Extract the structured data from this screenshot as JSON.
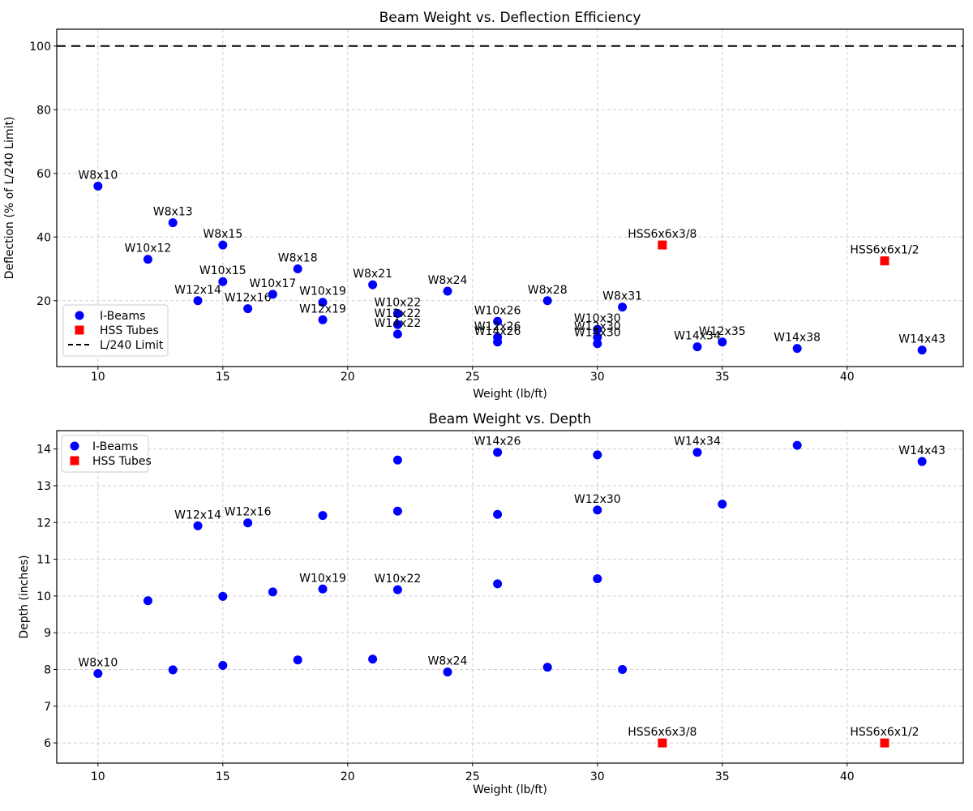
{
  "figure": {
    "background": "#ffffff"
  },
  "colors": {
    "i_beams": "#0000ff",
    "hss_tubes": "#ff0000",
    "limit_line": "#000000",
    "grid": "#cfcfcf"
  },
  "chart_data": [
    {
      "type": "scatter",
      "title": "Beam Weight vs. Deflection Efficiency",
      "xlabel": "Weight (lb/ft)",
      "ylabel": "Deflection (% of L/240 Limit)",
      "xlim": [
        8.35,
        44.65
      ],
      "ylim": [
        -0.7,
        105.3
      ],
      "xticks": [
        10,
        15,
        20,
        25,
        30,
        35,
        40
      ],
      "yticks": [
        20,
        40,
        60,
        80,
        100
      ],
      "grid": true,
      "legend_position": "lower left",
      "hline": {
        "y": 100,
        "label": "L/240 Limit",
        "color": "#000000",
        "style": "dashed"
      },
      "series": [
        {
          "name": "I-Beams",
          "marker": "circle",
          "color": "#0000ff",
          "points": [
            {
              "label": "W8x10",
              "x": 10,
              "y": 56,
              "annotate": true
            },
            {
              "label": "W10x12",
              "x": 12,
              "y": 33,
              "annotate": true
            },
            {
              "label": "W8x13",
              "x": 13,
              "y": 44.5,
              "annotate": true
            },
            {
              "label": "W12x14",
              "x": 14,
              "y": 20,
              "annotate": true
            },
            {
              "label": "W8x15",
              "x": 15,
              "y": 37.5,
              "annotate": true
            },
            {
              "label": "W10x15",
              "x": 15,
              "y": 26,
              "annotate": true
            },
            {
              "label": "W12x16",
              "x": 16,
              "y": 17.5,
              "annotate": true
            },
            {
              "label": "W10x17",
              "x": 17,
              "y": 22,
              "annotate": true
            },
            {
              "label": "W8x18",
              "x": 18,
              "y": 30,
              "annotate": true
            },
            {
              "label": "W10x19",
              "x": 19,
              "y": 19.5,
              "annotate": true
            },
            {
              "label": "W12x19",
              "x": 19,
              "y": 14,
              "annotate": true
            },
            {
              "label": "W8x21",
              "x": 21,
              "y": 25,
              "annotate": true
            },
            {
              "label": "W10x22",
              "x": 22,
              "y": 16,
              "annotate": true
            },
            {
              "label": "W12x22",
              "x": 22,
              "y": 12.5,
              "annotate": true
            },
            {
              "label": "W14x22",
              "x": 22,
              "y": 9.5,
              "annotate": true
            },
            {
              "label": "W8x24",
              "x": 24,
              "y": 23,
              "annotate": true
            },
            {
              "label": "W10x26",
              "x": 26,
              "y": 13.5,
              "annotate": true
            },
            {
              "label": "W12x26",
              "x": 26,
              "y": 8.5,
              "annotate": true
            },
            {
              "label": "W14x26",
              "x": 26,
              "y": 7,
              "annotate": true
            },
            {
              "label": "W8x28",
              "x": 28,
              "y": 20,
              "annotate": true
            },
            {
              "label": "W10x30",
              "x": 30,
              "y": 11,
              "annotate": true
            },
            {
              "label": "W12x30",
              "x": 30,
              "y": 8.5,
              "annotate": true
            },
            {
              "label": "W14x30",
              "x": 30,
              "y": 6.5,
              "annotate": true
            },
            {
              "label": "W8x31",
              "x": 31,
              "y": 18,
              "annotate": true
            },
            {
              "label": "W14x34",
              "x": 34,
              "y": 5.5,
              "annotate": true
            },
            {
              "label": "W12x35",
              "x": 35,
              "y": 7,
              "annotate": true
            },
            {
              "label": "W14x38",
              "x": 38,
              "y": 5,
              "annotate": true
            },
            {
              "label": "W14x43",
              "x": 43,
              "y": 4.5,
              "annotate": true
            }
          ]
        },
        {
          "name": "HSS Tubes",
          "marker": "square",
          "color": "#ff0000",
          "points": [
            {
              "label": "HSS6x6x3/8",
              "x": 32.6,
              "y": 37.5,
              "annotate": true
            },
            {
              "label": "HSS6x6x1/2",
              "x": 41.5,
              "y": 32.5,
              "annotate": true
            }
          ]
        }
      ]
    },
    {
      "type": "scatter",
      "title": "Beam Weight vs. Depth",
      "xlabel": "Weight (lb/ft)",
      "ylabel": "Depth (inches)",
      "xlim": [
        8.35,
        44.65
      ],
      "ylim": [
        5.45,
        14.5
      ],
      "xticks": [
        10,
        15,
        20,
        25,
        30,
        35,
        40
      ],
      "yticks": [
        6,
        7,
        8,
        9,
        10,
        11,
        12,
        13,
        14
      ],
      "grid": true,
      "legend_position": "upper left",
      "series": [
        {
          "name": "I-Beams",
          "marker": "circle",
          "color": "#0000ff",
          "points": [
            {
              "label": "W8x10",
              "x": 10,
              "y": 7.89,
              "annotate": true
            },
            {
              "label": "W10x12",
              "x": 12,
              "y": 9.87,
              "annotate": false
            },
            {
              "label": "W8x13",
              "x": 13,
              "y": 7.99,
              "annotate": false
            },
            {
              "label": "W12x14",
              "x": 14,
              "y": 11.91,
              "annotate": true
            },
            {
              "label": "W8x15",
              "x": 15,
              "y": 8.11,
              "annotate": false
            },
            {
              "label": "W10x15",
              "x": 15,
              "y": 9.99,
              "annotate": false
            },
            {
              "label": "W12x16",
              "x": 16,
              "y": 11.99,
              "annotate": true
            },
            {
              "label": "W10x17",
              "x": 17,
              "y": 10.11,
              "annotate": false
            },
            {
              "label": "W8x18",
              "x": 18,
              "y": 8.26,
              "annotate": false
            },
            {
              "label": "W10x19",
              "x": 19,
              "y": 10.19,
              "annotate": true
            },
            {
              "label": "W12x19",
              "x": 19,
              "y": 12.19,
              "annotate": false
            },
            {
              "label": "W8x21",
              "x": 21,
              "y": 8.28,
              "annotate": false
            },
            {
              "label": "W10x22",
              "x": 22,
              "y": 10.17,
              "annotate": true
            },
            {
              "label": "W12x22",
              "x": 22,
              "y": 12.31,
              "annotate": false
            },
            {
              "label": "W14x22",
              "x": 22,
              "y": 13.7,
              "annotate": false
            },
            {
              "label": "W8x24",
              "x": 24,
              "y": 7.93,
              "annotate": true
            },
            {
              "label": "W10x26",
              "x": 26,
              "y": 10.33,
              "annotate": false
            },
            {
              "label": "W12x26",
              "x": 26,
              "y": 12.22,
              "annotate": false
            },
            {
              "label": "W14x26",
              "x": 26,
              "y": 13.91,
              "annotate": true
            },
            {
              "label": "W8x28",
              "x": 28,
              "y": 8.06,
              "annotate": false
            },
            {
              "label": "W10x30",
              "x": 30,
              "y": 10.47,
              "annotate": false
            },
            {
              "label": "W12x30",
              "x": 30,
              "y": 12.34,
              "annotate": true
            },
            {
              "label": "W14x30",
              "x": 30,
              "y": 13.84,
              "annotate": false
            },
            {
              "label": "W8x31",
              "x": 31,
              "y": 8.0,
              "annotate": false
            },
            {
              "label": "W14x34",
              "x": 34,
              "y": 13.91,
              "annotate": true
            },
            {
              "label": "W12x35",
              "x": 35,
              "y": 12.5,
              "annotate": false
            },
            {
              "label": "W14x38",
              "x": 38,
              "y": 14.1,
              "annotate": false
            },
            {
              "label": "W14x43",
              "x": 43,
              "y": 13.66,
              "annotate": true
            }
          ]
        },
        {
          "name": "HSS Tubes",
          "marker": "square",
          "color": "#ff0000",
          "points": [
            {
              "label": "HSS6x6x3/8",
              "x": 32.6,
              "y": 6.0,
              "annotate": true
            },
            {
              "label": "HSS6x6x1/2",
              "x": 41.5,
              "y": 6.0,
              "annotate": true
            }
          ]
        }
      ]
    }
  ]
}
